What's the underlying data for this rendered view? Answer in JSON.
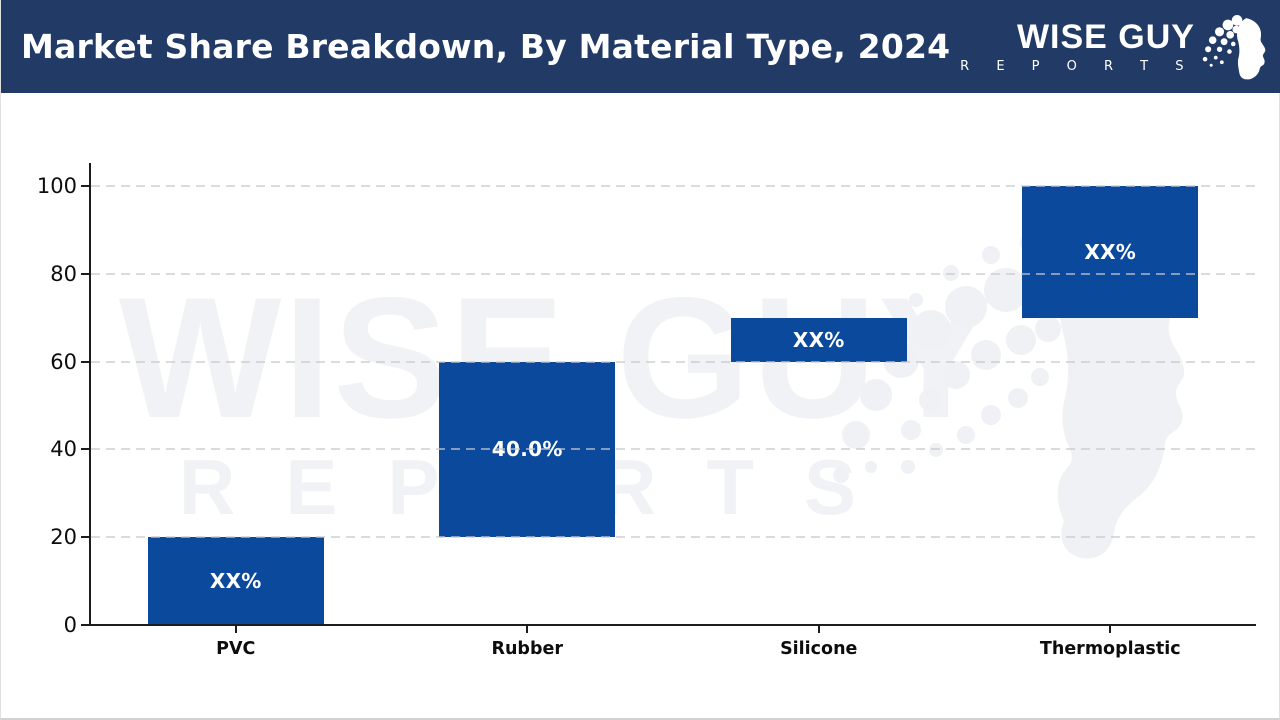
{
  "header": {
    "title": "Market Share Breakdown, By Material Type, 2024",
    "logo": {
      "main": "WISE GUY",
      "sub": "REPORTS"
    }
  },
  "watermark": {
    "line1": "WISE GUY",
    "line2": "REPORTS"
  },
  "chart_data": {
    "type": "bar",
    "subtype": "waterfall",
    "title": "Market Share Breakdown, By Material Type, 2024",
    "categories": [
      "PVC",
      "Rubber",
      "Silicone",
      "Thermoplastic"
    ],
    "segments": [
      {
        "category": "PVC",
        "start": 0,
        "end": 20,
        "label": "XX%"
      },
      {
        "category": "Rubber",
        "start": 20,
        "end": 60,
        "label": "40.0%"
      },
      {
        "category": "Silicone",
        "start": 60,
        "end": 70,
        "label": "XX%"
      },
      {
        "category": "Thermoplastic",
        "start": 70,
        "end": 100,
        "label": "XX%"
      }
    ],
    "implied_values": [
      20,
      40,
      10,
      30
    ],
    "yticks": [
      0,
      20,
      40,
      60,
      80,
      100
    ],
    "ylim": [
      0,
      105
    ],
    "xlabel": "",
    "ylabel": "",
    "grid": "dashed-horizontal",
    "legend": "none",
    "bar_color": "#0a499c",
    "bar_label_color": "#ffffff",
    "axis_color": "#1c1c1c",
    "header_color": "#213a66",
    "watermark_color": "#f1f2f5"
  }
}
